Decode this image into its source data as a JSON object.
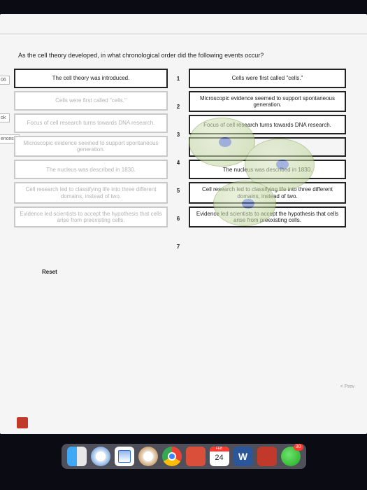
{
  "question": "As the cell theory developed, in what chronological order did the following events occur?",
  "side_tabs": {
    "t1": "06",
    "t2": "ok",
    "t3": "ences"
  },
  "left_cards": [
    {
      "text": "The cell theory was introduced.",
      "muted": false
    },
    {
      "text": "Cells were first called \"cells.\"",
      "muted": true
    },
    {
      "text": "Focus of cell research turns towards DNA research.",
      "muted": true
    },
    {
      "text": "Microscopic evidence seemed to support spontaneous generation.",
      "muted": true
    },
    {
      "text": "The nucleus was described in 1830.",
      "muted": true
    },
    {
      "text": "Cell research led to classifying life into three different domains, instead of two.",
      "muted": true
    },
    {
      "text": "Evidence led scientists to accept the hypothesis that cells arise from preexisting cells.",
      "muted": true
    }
  ],
  "numbers": [
    "1",
    "2",
    "3",
    "4",
    "5",
    "6",
    "7"
  ],
  "right_slots": [
    {
      "text": "Cells were first called \"cells.\"",
      "filled": true
    },
    {
      "text": "Microscopic evidence seemed to support spontaneous generation.",
      "filled": true
    },
    {
      "text": "Focus of cell research turns towards DNA research.",
      "filled": true
    },
    {
      "text": "",
      "filled": false
    },
    {
      "text": "The nucleus was described in 1830.",
      "filled": true
    },
    {
      "text": "Cell research led to classifying life into three different domains, instead of two.",
      "filled": true
    },
    {
      "text": "Evidence led scientists to accept the hypothesis that cells arise from preexisting cells.",
      "filled": true
    }
  ],
  "reset_label": "Reset",
  "dock": {
    "cal_month": "FEB",
    "cal_day": "24",
    "chat_badge": "30"
  },
  "prev_label": "< Prev",
  "colors": {
    "border": "#222222",
    "muted": "#b2b2b2",
    "screen_bg": "#f5f5f5",
    "body_bg": "#1a1a2a"
  }
}
